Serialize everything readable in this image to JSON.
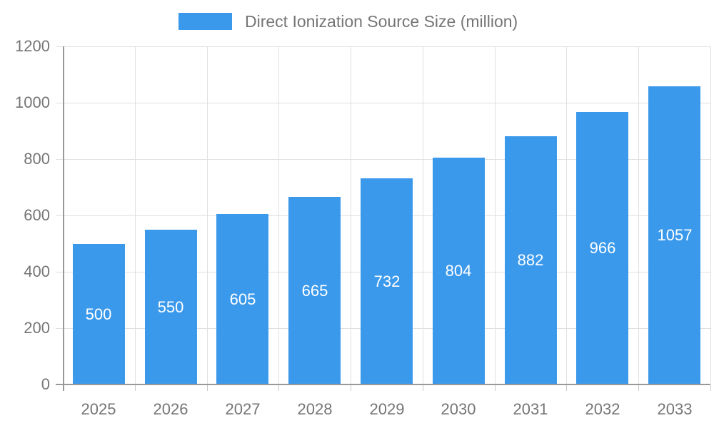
{
  "chart_data": {
    "type": "bar",
    "legend_label": "Direct Ionization Source Size (million)",
    "legend_position": "top",
    "categories": [
      "2025",
      "2026",
      "2027",
      "2028",
      "2029",
      "2030",
      "2031",
      "2032",
      "2033"
    ],
    "series": [
      {
        "name": "Direct Ionization Source Size (million)",
        "values": [
          500,
          550,
          605,
          665,
          732,
          804,
          882,
          966,
          1057
        ]
      }
    ],
    "value_labels": "inside-center",
    "xlabel": "",
    "ylabel": "",
    "ylim": [
      0,
      1200
    ],
    "y_ticks": [
      0,
      200,
      400,
      600,
      800,
      1000,
      1200
    ],
    "grid": true,
    "colors": {
      "bar": "#3B99EC",
      "value_label": "#FFFFFF",
      "axis_text": "#757575",
      "grid_line": "#E0E0E0",
      "axis_line": "#999999",
      "background": "#FFFFFF"
    }
  }
}
